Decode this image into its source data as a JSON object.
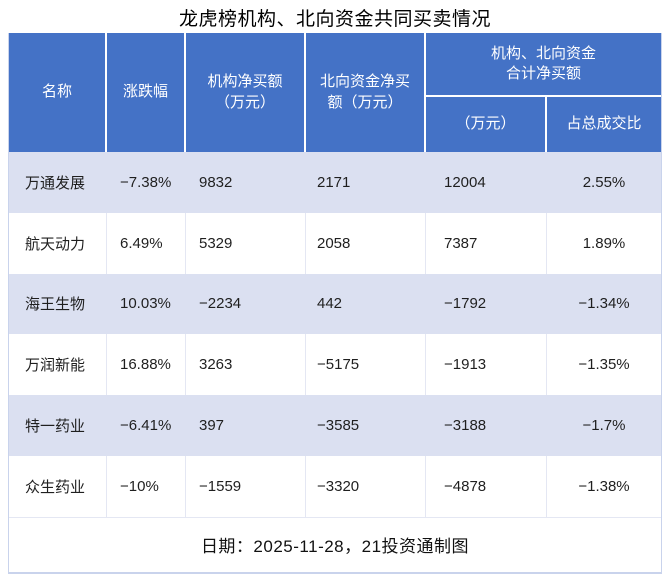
{
  "title": "龙虎榜机构、北向资金共同买卖情况",
  "colors": {
    "header_bg": "#4472C6",
    "header_text": "#FFFFFF",
    "row_alt_bg": "#DBE0F1",
    "row_bg": "#FFFFFF",
    "outer_border": "#C9D3EC",
    "body_text": "#1F1F1F"
  },
  "header": {
    "name": "名称",
    "change": "涨跌幅",
    "inst_net": "机构净买额\n（万元）",
    "north_net": "北向资金净买\n额（万元）",
    "combo_group": "机构、北向资金\n合计净买额",
    "combo_amount": "（万元）",
    "combo_ratio": "占总成交比"
  },
  "rows": [
    {
      "name": "万通发展",
      "change": "−7.38%",
      "inst": "9832",
      "north": "2171",
      "total": "12004",
      "ratio": "2.55%"
    },
    {
      "name": "航天动力",
      "change": "6.49%",
      "inst": "5329",
      "north": "2058",
      "total": "7387",
      "ratio": "1.89%"
    },
    {
      "name": "海王生物",
      "change": "10.03%",
      "inst": "−2234",
      "north": "442",
      "total": "−1792",
      "ratio": "−1.34%"
    },
    {
      "name": "万润新能",
      "change": "16.88%",
      "inst": "3263",
      "north": "−5175",
      "total": "−1913",
      "ratio": "−1.35%"
    },
    {
      "name": "特一药业",
      "change": "−6.41%",
      "inst": "397",
      "north": "−3585",
      "total": "−3188",
      "ratio": "−1.7%"
    },
    {
      "name": "众生药业",
      "change": "−10%",
      "inst": "−1559",
      "north": "−3320",
      "total": "−4878",
      "ratio": "−1.38%"
    }
  ],
  "footer": {
    "note": "日期：2025-11-28，21投资通制图"
  },
  "chart_data": {
    "type": "table",
    "title": "龙虎榜机构、北向资金共同买卖情况",
    "columns": [
      "名称",
      "涨跌幅",
      "机构净买额（万元）",
      "北向资金净买额（万元）",
      "机构、北向资金合计净买额（万元）",
      "机构、北向资金合计净买额占总成交比"
    ],
    "rows": [
      [
        "万通发展",
        -7.38,
        9832,
        2171,
        12004,
        2.55
      ],
      [
        "航天动力",
        6.49,
        5329,
        2058,
        7387,
        1.89
      ],
      [
        "海王生物",
        10.03,
        -2234,
        442,
        -1792,
        -1.34
      ],
      [
        "万润新能",
        16.88,
        3263,
        -5175,
        -1913,
        -1.35
      ],
      [
        "特一药业",
        -6.41,
        397,
        -3585,
        -3188,
        -1.7
      ],
      [
        "众生药业",
        -10,
        -1559,
        -3320,
        -4878,
        -1.38
      ]
    ],
    "units": {
      "涨跌幅": "%",
      "净买额": "万元",
      "占总成交比": "%"
    },
    "footnote": "日期：2025-11-28，21投资通制图"
  }
}
